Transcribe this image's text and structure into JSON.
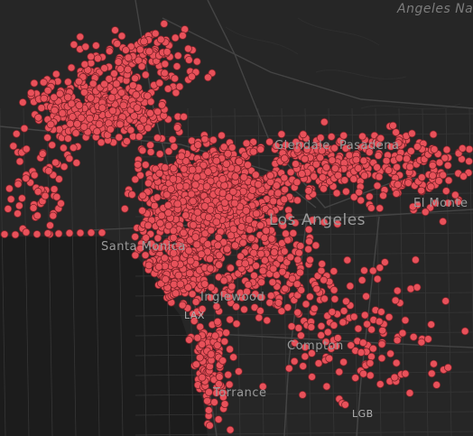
{
  "map": {
    "labels": {
      "angeles_nat_forest": "Angeles Na",
      "glendale": "Glendale",
      "pasadena": "Pasadena",
      "el_monte": "El Monte",
      "los_angeles": "Los Angeles",
      "santa_monica": "Santa Monica",
      "inglewood": "Inglewood",
      "lax": "LAX",
      "compton": "Compton",
      "torrance": "Torrance",
      "lgb": "LGB"
    },
    "colors": {
      "background": "#262626",
      "ocean": "#1c1c1c",
      "road": "#3a3a3a",
      "point_fill": "#e8515a",
      "point_stroke": "#7a2228"
    }
  }
}
